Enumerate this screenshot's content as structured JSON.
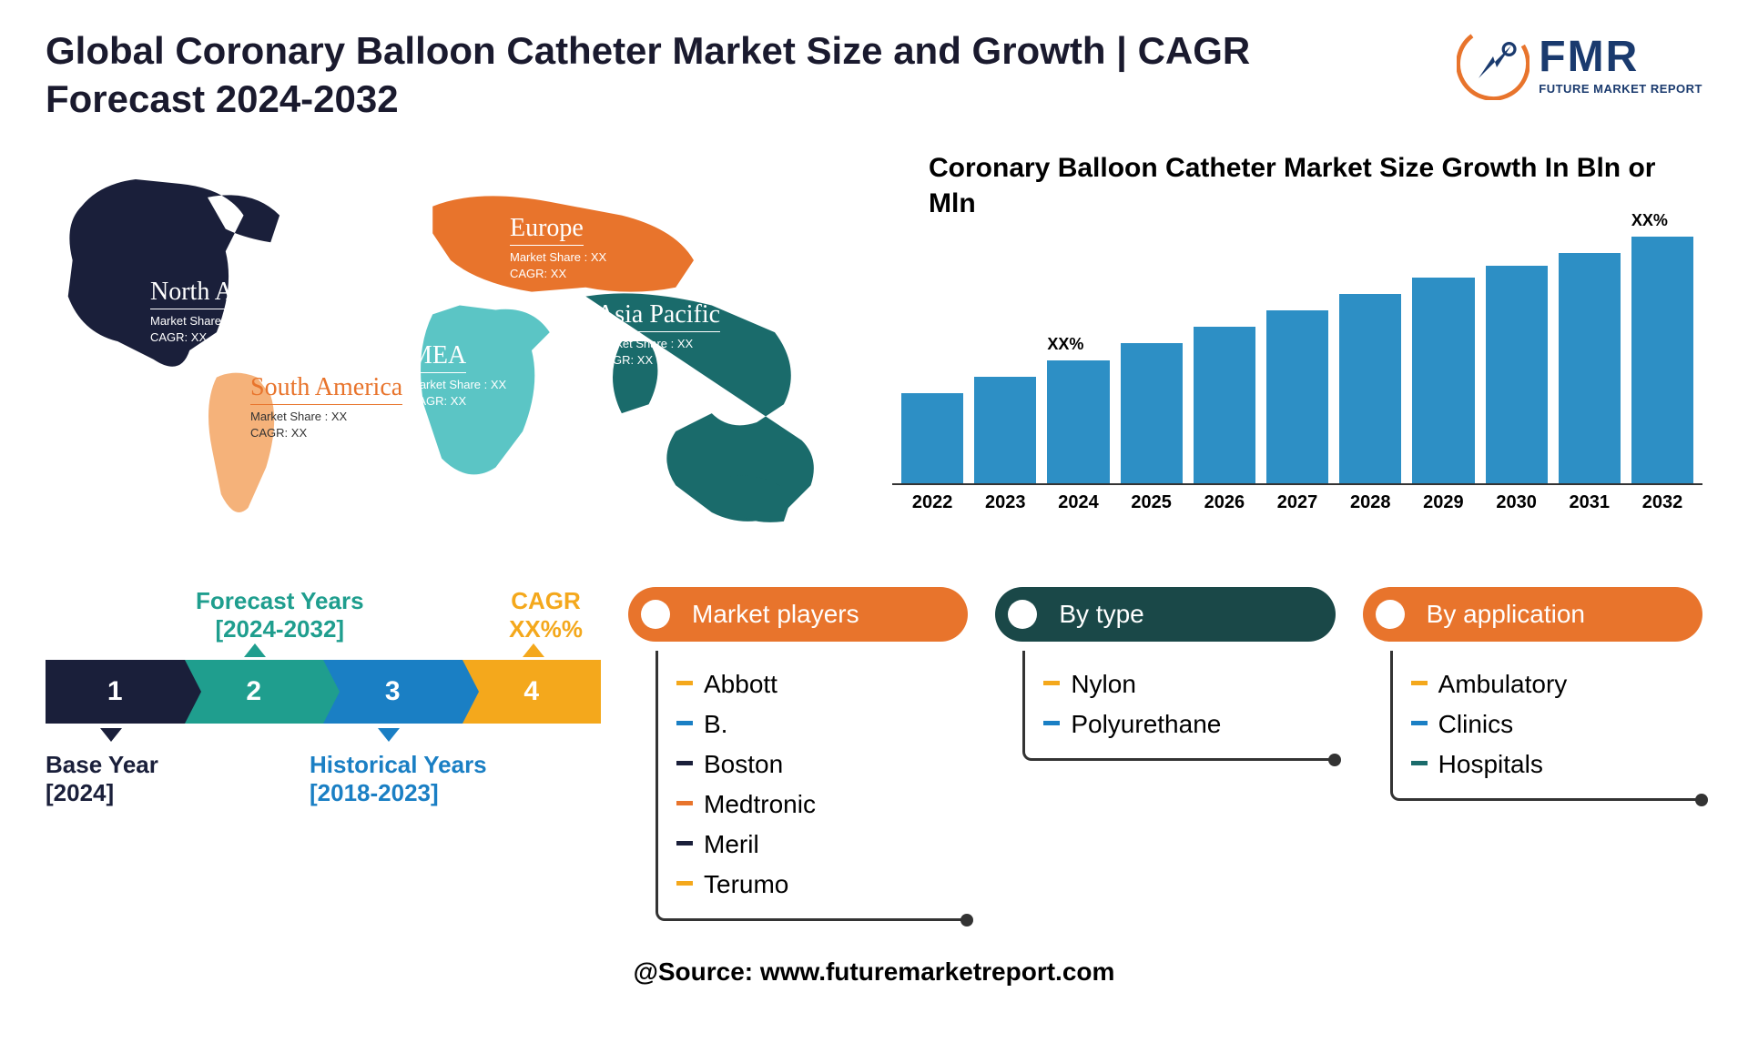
{
  "title": "Global Coronary Balloon Catheter Market Size and Growth | CAGR Forecast 2024-2032",
  "logo": {
    "abbr": "FMR",
    "subtitle": "FUTURE MARKET REPORT"
  },
  "map": {
    "regions": [
      {
        "key": "na",
        "name": "North America",
        "share": "Market Share : XX",
        "cagr": "CAGR: XX",
        "color": "#1a1f3a"
      },
      {
        "key": "sa",
        "name": "South America",
        "share": "Market Share : XX",
        "cagr": "CAGR: XX",
        "color": "#f5b27a"
      },
      {
        "key": "eu",
        "name": "Europe",
        "share": "Market Share : XX",
        "cagr": "CAGR: XX",
        "color": "#e8742c"
      },
      {
        "key": "mea",
        "name": "MEA",
        "share": "Market Share : XX",
        "cagr": "CAGR: XX",
        "color": "#5bc5c5"
      },
      {
        "key": "ap",
        "name": "Asia Pacific",
        "share": "Market Share : XX",
        "cagr": "CAGR: XX",
        "color": "#1a6b6b"
      }
    ]
  },
  "chart": {
    "title": "Coronary Balloon Catheter Market Size Growth In Bln or Mln",
    "type": "bar",
    "bar_color": "#2d8fc5",
    "axis_color": "#333333",
    "years": [
      "2022",
      "2023",
      "2024",
      "2025",
      "2026",
      "2027",
      "2028",
      "2029",
      "2030",
      "2031",
      "2032"
    ],
    "values": [
      110,
      130,
      150,
      170,
      190,
      210,
      230,
      250,
      265,
      280,
      300
    ],
    "ymax": 310,
    "labels": {
      "2024": "XX%",
      "2032": "XX%"
    }
  },
  "timeline": {
    "segments": [
      {
        "n": "1",
        "color": "#1a1f3a"
      },
      {
        "n": "2",
        "color": "#1f9e8e"
      },
      {
        "n": "3",
        "color": "#1a7fc4"
      },
      {
        "n": "4",
        "color": "#f4a81c"
      }
    ],
    "labels": {
      "base": {
        "title": "Base Year",
        "sub": "[2024]",
        "color": "#1a1f3a"
      },
      "forecast": {
        "title": "Forecast Years",
        "sub": "[2024-2032]",
        "color": "#1f9e8e"
      },
      "historical": {
        "title": "Historical Years",
        "sub": "[2018-2023]",
        "color": "#1a7fc4"
      },
      "cagr": {
        "title": "CAGR",
        "sub": "XX%%",
        "color": "#f4a81c"
      }
    }
  },
  "pills": {
    "players": {
      "title": "Market players",
      "color": "#e8742c",
      "items": [
        "Abbott",
        "B.",
        "Boston",
        "Medtronic",
        "Meril",
        "Terumo"
      ],
      "item_colors": [
        "#f4a81c",
        "#1a7fc4",
        "#1a1f3a",
        "#e8742c",
        "#1a1f3a",
        "#f4a81c"
      ]
    },
    "type": {
      "title": "By type",
      "color": "#1a4848",
      "items": [
        "Nylon",
        "Polyurethane"
      ],
      "item_colors": [
        "#f4a81c",
        "#1a7fc4"
      ]
    },
    "application": {
      "title": "By application",
      "color": "#e8742c",
      "items": [
        "Ambulatory",
        "Clinics",
        "Hospitals"
      ],
      "item_colors": [
        "#f4a81c",
        "#1a7fc4",
        "#1a6b6b"
      ]
    }
  },
  "source": "@Source: www.futuremarketreport.com"
}
